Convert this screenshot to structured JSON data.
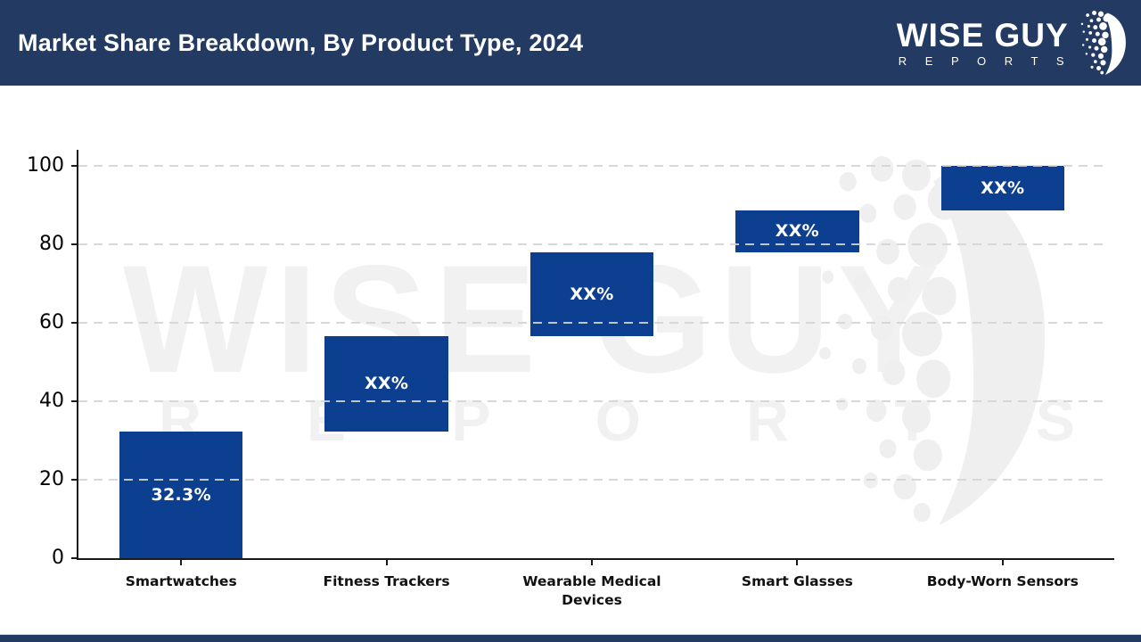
{
  "header": {
    "title": "Market Share Breakdown, By Product Type, 2024",
    "background": "#233a63",
    "logo": {
      "name": "WISE GUY",
      "sub": "R E P O R T S"
    }
  },
  "watermark": {
    "line1": "WISE GUY",
    "line2": "R E P O R T S"
  },
  "footer": {
    "background": "#233a63"
  },
  "chart_data": {
    "type": "bar",
    "subtype": "floating_waterfall_segments",
    "title": "Market Share Breakdown, By Product Type, 2024",
    "categories": [
      "Smartwatches",
      "Fitness Trackers",
      "Wearable Medical Devices",
      "Smart Glasses",
      "Body-Worn Sensors"
    ],
    "segments": [
      {
        "category": "Smartwatches",
        "start": 0,
        "end": 32.3,
        "label": "32.3%"
      },
      {
        "category": "Fitness Trackers",
        "start": 32.3,
        "end": 56.5,
        "label": "XX%"
      },
      {
        "category": "Wearable Medical Devices",
        "start": 56.5,
        "end": 78,
        "label": "XX%"
      },
      {
        "category": "Smart Glasses",
        "start": 78,
        "end": 88.6,
        "label": "XX%"
      },
      {
        "category": "Body-Worn Sensors",
        "start": 88.6,
        "end": 100,
        "label": "XX%"
      }
    ],
    "xlabel": "",
    "ylabel": "",
    "yticks": [
      0,
      20,
      40,
      60,
      80,
      100
    ],
    "ylim": [
      0,
      104
    ],
    "bar_color": "#0d3f91",
    "bar_label_color": "#ffffff",
    "bar_width_fraction": 0.6,
    "grid": {
      "axis": "y",
      "style": "dashed",
      "color": "#d4d4d4",
      "on_top_of_bars": true
    },
    "legend": "none"
  }
}
